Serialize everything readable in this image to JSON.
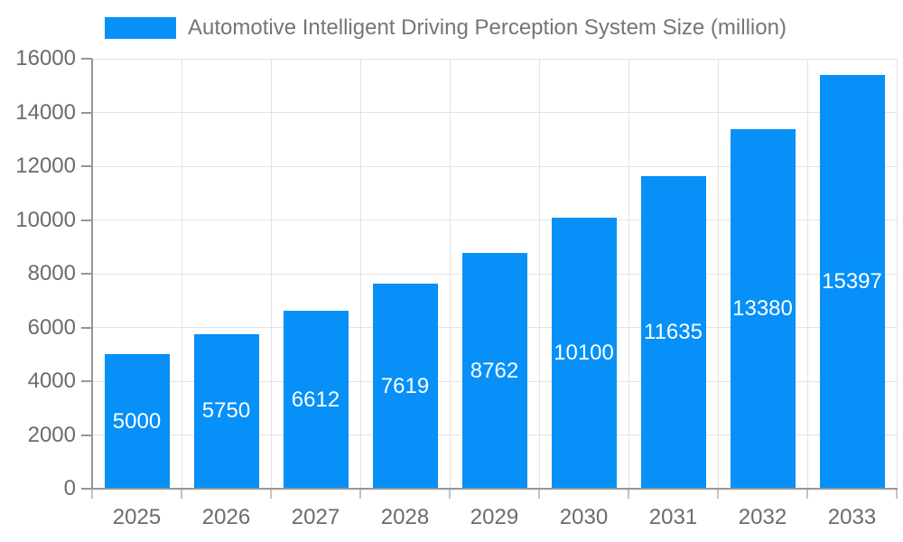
{
  "chart_data": {
    "type": "bar",
    "title": "Automotive Intelligent Driving Perception System Size (million)",
    "categories": [
      "2025",
      "2026",
      "2027",
      "2028",
      "2029",
      "2030",
      "2031",
      "2032",
      "2033"
    ],
    "values": [
      5000,
      5750,
      6612,
      7619,
      8762,
      10100,
      11635,
      13380,
      15397
    ],
    "xlabel": "",
    "ylabel": "",
    "ylim": [
      0,
      16000
    ],
    "ytick_interval": 2000,
    "yticks": [
      0,
      2000,
      4000,
      6000,
      8000,
      10000,
      12000,
      14000,
      16000
    ],
    "grid": true,
    "legend_position": "top",
    "bar_labels_inside": "center",
    "colors": {
      "bar": "#0690F8",
      "bar_label": "#FFFFFF",
      "legend_text": "#757575",
      "axis_text": "#6B6B6B",
      "gridline": "#E3E3E3",
      "axis_line": "#969696",
      "x_tick": "#C2C2C2",
      "background": "#FFFFFF"
    }
  }
}
